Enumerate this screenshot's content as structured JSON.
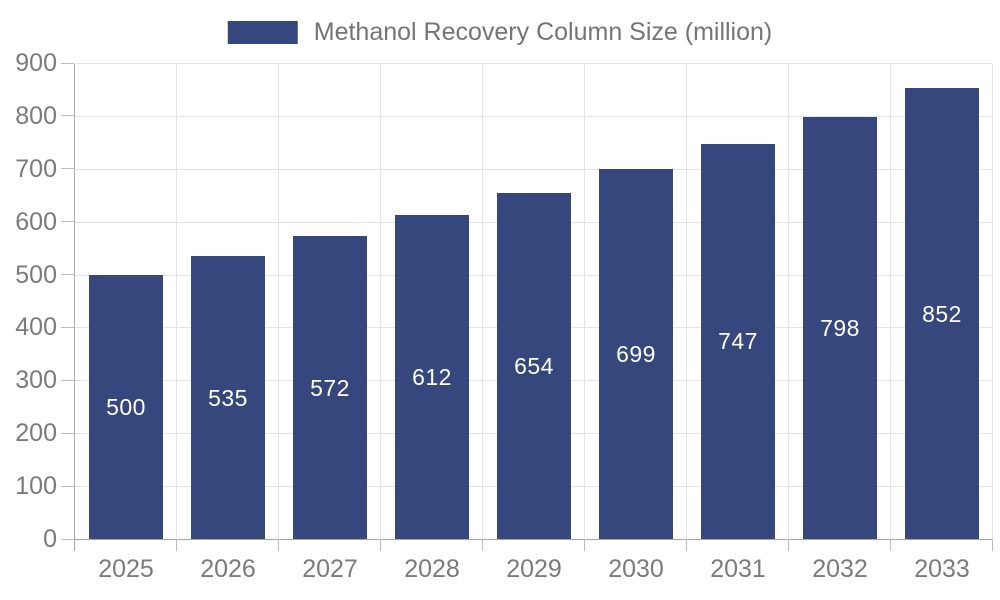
{
  "chart_data": {
    "type": "bar",
    "title": "",
    "legend": [
      "Methanol Recovery Column Size (million)"
    ],
    "legend_position": "top-center",
    "categories": [
      "2025",
      "2026",
      "2027",
      "2028",
      "2029",
      "2030",
      "2031",
      "2032",
      "2033"
    ],
    "values": [
      500,
      535,
      572,
      612,
      654,
      699,
      747,
      798,
      852
    ],
    "xlabel": "",
    "ylabel": "",
    "ylim": [
      0,
      900
    ],
    "yticks": [
      0,
      100,
      200,
      300,
      400,
      500,
      600,
      700,
      800,
      900
    ],
    "grid": true,
    "value_labels_position": "inside-center"
  },
  "colors": {
    "bar": "#36477E",
    "grid": "#E3E3E9",
    "axis": "#A8A8A8",
    "tick": "#BDBDBD",
    "tick_label": "#7B7B7B",
    "legend_text": "#757575",
    "value_label": "#FFFFFF",
    "background": "#FFFFFF"
  }
}
